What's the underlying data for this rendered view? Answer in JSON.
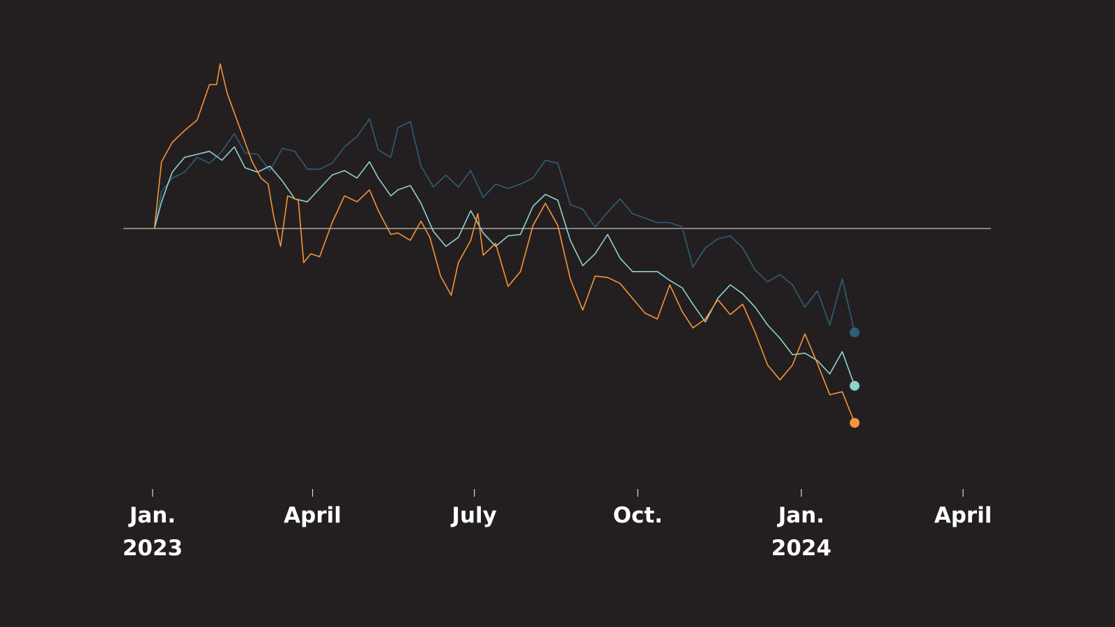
{
  "chart_data": {
    "type": "line",
    "title": "",
    "xlabel": "",
    "ylabel": "",
    "grid": false,
    "legend": "none",
    "baseline_value": 0,
    "xlim": [
      "2023-01-01",
      "2024-04-01"
    ],
    "ylim": [
      -23,
      14
    ],
    "x_ticks": [
      {
        "date": "2023-01-01",
        "line1": "Jan.",
        "line2": "2023"
      },
      {
        "date": "2023-04-01",
        "line1": "April",
        "line2": ""
      },
      {
        "date": "2023-07-01",
        "line1": "July",
        "line2": ""
      },
      {
        "date": "2023-10-01",
        "line1": "Oct.",
        "line2": ""
      },
      {
        "date": "2024-01-01",
        "line1": "Jan.",
        "line2": "2024"
      },
      {
        "date": "2024-04-01",
        "line1": "April",
        "line2": ""
      }
    ],
    "series": [
      {
        "color": "#2f5f78",
        "end_marker": true,
        "points": [
          [
            "2023-01-02",
            0
          ],
          [
            "2023-01-06",
            2.5
          ],
          [
            "2023-01-12",
            3.4
          ],
          [
            "2023-01-19",
            3.8
          ],
          [
            "2023-01-26",
            4.8
          ],
          [
            "2023-02-02",
            4.4
          ],
          [
            "2023-02-09",
            5.2
          ],
          [
            "2023-02-16",
            6.4
          ],
          [
            "2023-02-22",
            5.1
          ],
          [
            "2023-03-01",
            5.0
          ],
          [
            "2023-03-08",
            3.9
          ],
          [
            "2023-03-15",
            5.4
          ],
          [
            "2023-03-22",
            5.2
          ],
          [
            "2023-03-29",
            4.0
          ],
          [
            "2023-04-05",
            4.0
          ],
          [
            "2023-04-12",
            4.4
          ],
          [
            "2023-04-19",
            5.5
          ],
          [
            "2023-04-26",
            6.2
          ],
          [
            "2023-05-03",
            7.4
          ],
          [
            "2023-05-08",
            5.3
          ],
          [
            "2023-05-15",
            4.8
          ],
          [
            "2023-05-19",
            6.8
          ],
          [
            "2023-05-26",
            7.2
          ],
          [
            "2023-06-01",
            4.2
          ],
          [
            "2023-06-08",
            2.8
          ],
          [
            "2023-06-15",
            3.6
          ],
          [
            "2023-06-22",
            2.8
          ],
          [
            "2023-06-29",
            3.9
          ],
          [
            "2023-07-06",
            2.1
          ],
          [
            "2023-07-13",
            3.0
          ],
          [
            "2023-07-20",
            2.7
          ],
          [
            "2023-07-27",
            3.0
          ],
          [
            "2023-08-03",
            3.4
          ],
          [
            "2023-08-10",
            4.6
          ],
          [
            "2023-08-17",
            4.4
          ],
          [
            "2023-08-24",
            1.6
          ],
          [
            "2023-08-31",
            1.3
          ],
          [
            "2023-09-07",
            0.1
          ],
          [
            "2023-09-14",
            1.1
          ],
          [
            "2023-09-21",
            2.0
          ],
          [
            "2023-09-28",
            1.0
          ],
          [
            "2023-10-05",
            0.7
          ],
          [
            "2023-10-12",
            0.4
          ],
          [
            "2023-10-19",
            0.4
          ],
          [
            "2023-10-26",
            0.1
          ],
          [
            "2023-11-01",
            -2.6
          ],
          [
            "2023-11-08",
            -1.3
          ],
          [
            "2023-11-15",
            -0.7
          ],
          [
            "2023-11-22",
            -0.5
          ],
          [
            "2023-11-29",
            -1.3
          ],
          [
            "2023-12-06",
            -2.8
          ],
          [
            "2023-12-13",
            -3.6
          ],
          [
            "2023-12-20",
            -3.1
          ],
          [
            "2023-12-27",
            -3.8
          ],
          [
            "2024-01-03",
            -5.3
          ],
          [
            "2024-01-10",
            -4.2
          ],
          [
            "2024-01-17",
            -6.5
          ],
          [
            "2024-01-24",
            -3.4
          ],
          [
            "2024-01-31",
            -7.0
          ]
        ]
      },
      {
        "color": "#8fd3d0",
        "end_marker": true,
        "points": [
          [
            "2023-01-02",
            0
          ],
          [
            "2023-01-06",
            1.8
          ],
          [
            "2023-01-12",
            3.8
          ],
          [
            "2023-01-19",
            4.8
          ],
          [
            "2023-01-26",
            5.0
          ],
          [
            "2023-02-02",
            5.2
          ],
          [
            "2023-02-09",
            4.6
          ],
          [
            "2023-02-16",
            5.5
          ],
          [
            "2023-02-22",
            4.1
          ],
          [
            "2023-03-01",
            3.8
          ],
          [
            "2023-03-08",
            4.2
          ],
          [
            "2023-03-15",
            3.2
          ],
          [
            "2023-03-22",
            2.0
          ],
          [
            "2023-03-29",
            1.8
          ],
          [
            "2023-04-05",
            2.7
          ],
          [
            "2023-04-12",
            3.6
          ],
          [
            "2023-04-19",
            3.9
          ],
          [
            "2023-04-26",
            3.4
          ],
          [
            "2023-05-03",
            4.5
          ],
          [
            "2023-05-08",
            3.4
          ],
          [
            "2023-05-15",
            2.2
          ],
          [
            "2023-05-19",
            2.6
          ],
          [
            "2023-05-26",
            2.9
          ],
          [
            "2023-06-01",
            1.7
          ],
          [
            "2023-06-08",
            -0.2
          ],
          [
            "2023-06-15",
            -1.2
          ],
          [
            "2023-06-22",
            -0.6
          ],
          [
            "2023-06-29",
            1.2
          ],
          [
            "2023-07-06",
            -0.3
          ],
          [
            "2023-07-13",
            -1.2
          ],
          [
            "2023-07-20",
            -0.5
          ],
          [
            "2023-07-27",
            -0.4
          ],
          [
            "2023-08-03",
            1.5
          ],
          [
            "2023-08-10",
            2.3
          ],
          [
            "2023-08-17",
            1.9
          ],
          [
            "2023-08-24",
            -0.8
          ],
          [
            "2023-08-31",
            -2.5
          ],
          [
            "2023-09-07",
            -1.7
          ],
          [
            "2023-09-14",
            -0.4
          ],
          [
            "2023-09-21",
            -2.0
          ],
          [
            "2023-09-28",
            -2.9
          ],
          [
            "2023-10-05",
            -2.9
          ],
          [
            "2023-10-12",
            -2.9
          ],
          [
            "2023-10-19",
            -3.5
          ],
          [
            "2023-10-26",
            -4.0
          ],
          [
            "2023-11-01",
            -5.1
          ],
          [
            "2023-11-08",
            -6.3
          ],
          [
            "2023-11-15",
            -4.7
          ],
          [
            "2023-11-22",
            -3.8
          ],
          [
            "2023-11-29",
            -4.4
          ],
          [
            "2023-12-06",
            -5.3
          ],
          [
            "2023-12-13",
            -6.5
          ],
          [
            "2023-12-20",
            -7.4
          ],
          [
            "2023-12-27",
            -8.5
          ],
          [
            "2024-01-03",
            -8.4
          ],
          [
            "2024-01-10",
            -8.9
          ],
          [
            "2024-01-17",
            -9.8
          ],
          [
            "2024-01-24",
            -8.3
          ],
          [
            "2024-01-31",
            -10.6
          ]
        ]
      },
      {
        "color": "#f7943a",
        "end_marker": true,
        "points": [
          [
            "2023-01-02",
            0
          ],
          [
            "2023-01-06",
            4.5
          ],
          [
            "2023-01-12",
            5.8
          ],
          [
            "2023-01-19",
            6.6
          ],
          [
            "2023-01-26",
            7.3
          ],
          [
            "2023-02-02",
            9.7
          ],
          [
            "2023-02-06",
            9.7
          ],
          [
            "2023-02-08",
            11.1
          ],
          [
            "2023-02-12",
            9.1
          ],
          [
            "2023-02-19",
            6.8
          ],
          [
            "2023-02-26",
            4.5
          ],
          [
            "2023-03-03",
            3.4
          ],
          [
            "2023-03-07",
            3.0
          ],
          [
            "2023-03-10",
            0.9
          ],
          [
            "2023-03-14",
            -1.2
          ],
          [
            "2023-03-18",
            2.2
          ],
          [
            "2023-03-24",
            1.9
          ],
          [
            "2023-03-27",
            -2.3
          ],
          [
            "2023-03-31",
            -1.7
          ],
          [
            "2023-04-05",
            -1.9
          ],
          [
            "2023-04-12",
            0.4
          ],
          [
            "2023-04-19",
            2.2
          ],
          [
            "2023-04-26",
            1.8
          ],
          [
            "2023-05-03",
            2.6
          ],
          [
            "2023-05-08",
            1.2
          ],
          [
            "2023-05-15",
            -0.4
          ],
          [
            "2023-05-19",
            -0.3
          ],
          [
            "2023-05-26",
            -0.8
          ],
          [
            "2023-06-01",
            0.5
          ],
          [
            "2023-06-06",
            -0.6
          ],
          [
            "2023-06-12",
            -3.2
          ],
          [
            "2023-06-18",
            -4.5
          ],
          [
            "2023-06-22",
            -2.3
          ],
          [
            "2023-06-29",
            -0.8
          ],
          [
            "2023-07-03",
            1.0
          ],
          [
            "2023-07-06",
            -1.8
          ],
          [
            "2023-07-13",
            -1.0
          ],
          [
            "2023-07-20",
            -3.9
          ],
          [
            "2023-07-27",
            -2.9
          ],
          [
            "2023-08-03",
            0.2
          ],
          [
            "2023-08-10",
            1.7
          ],
          [
            "2023-08-17",
            0.2
          ],
          [
            "2023-08-24",
            -3.4
          ],
          [
            "2023-08-31",
            -5.5
          ],
          [
            "2023-09-07",
            -3.2
          ],
          [
            "2023-09-14",
            -3.3
          ],
          [
            "2023-09-21",
            -3.7
          ],
          [
            "2023-09-28",
            -4.7
          ],
          [
            "2023-10-05",
            -5.7
          ],
          [
            "2023-10-12",
            -6.1
          ],
          [
            "2023-10-19",
            -3.8
          ],
          [
            "2023-10-26",
            -5.6
          ],
          [
            "2023-11-01",
            -6.7
          ],
          [
            "2023-11-08",
            -6.1
          ],
          [
            "2023-11-15",
            -4.8
          ],
          [
            "2023-11-22",
            -5.8
          ],
          [
            "2023-11-29",
            -5.1
          ],
          [
            "2023-12-06",
            -7.0
          ],
          [
            "2023-12-13",
            -9.2
          ],
          [
            "2023-12-20",
            -10.2
          ],
          [
            "2023-12-27",
            -9.2
          ],
          [
            "2024-01-03",
            -7.1
          ],
          [
            "2024-01-10",
            -9.1
          ],
          [
            "2024-01-17",
            -11.2
          ],
          [
            "2024-01-24",
            -11.0
          ],
          [
            "2024-01-31",
            -13.1
          ]
        ]
      }
    ]
  }
}
